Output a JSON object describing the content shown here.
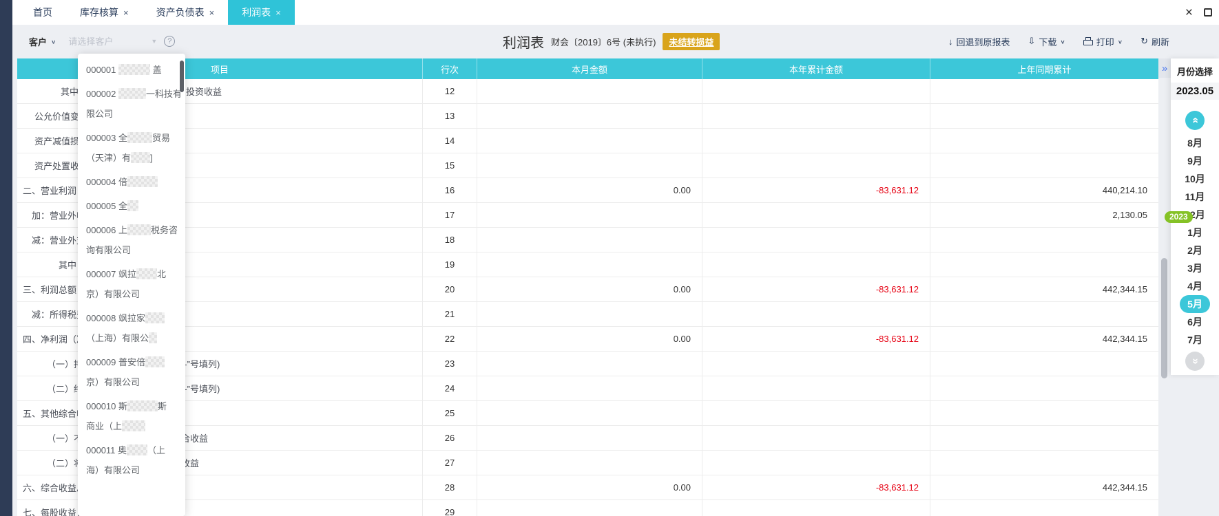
{
  "window": {
    "close_icon": "×"
  },
  "tabs": [
    {
      "label": "首页",
      "closable": false,
      "active": false
    },
    {
      "label": "库存核算",
      "closable": true,
      "active": false
    },
    {
      "label": "资产负债表",
      "closable": true,
      "active": false
    },
    {
      "label": "利润表",
      "closable": true,
      "active": true
    }
  ],
  "toolbar": {
    "filter_label": "客户",
    "filter_placeholder": "请选择客户",
    "help_icon": "?",
    "title": "利润表",
    "subtitle": "财会〔2019〕6号 (未执行)",
    "badge": "未结转损益",
    "actions": [
      {
        "name": "revert-report",
        "icon": "↓",
        "label": "回退到原报表",
        "caret": false
      },
      {
        "name": "download",
        "icon": "⇩",
        "label": "下载",
        "caret": true
      },
      {
        "name": "print",
        "icon": "printer",
        "label": "打印",
        "caret": true
      },
      {
        "name": "refresh",
        "icon": "↻",
        "label": "刷新",
        "caret": false
      }
    ]
  },
  "table": {
    "headers": [
      "项目",
      "行次",
      "本月金额",
      "本年累计金额",
      "上年同期累计"
    ],
    "rows": [
      {
        "no": "12",
        "item": "其中：对联营企业和合营企业的投资收益",
        "indent": 63,
        "cur": "",
        "ytd": "",
        "prior": ""
      },
      {
        "no": "13",
        "item": "公允价值变动收益（损失以“-”号填列）",
        "indent": 25,
        "cur": "",
        "ytd": "",
        "prior": ""
      },
      {
        "no": "14",
        "item": "资产减值损失（损失以“-”号填列）",
        "indent": 25,
        "cur": "",
        "ytd": "",
        "prior": ""
      },
      {
        "no": "15",
        "item": "资产处置收益（损失以“-”号填列）",
        "indent": 25,
        "cur": "",
        "ytd": "",
        "prior": ""
      },
      {
        "no": "16",
        "item": "二、营业利润（亏损以“-”号填列）",
        "indent": 8,
        "cur": "0.00",
        "ytd": "-83,631.12",
        "prior": "440,214.10"
      },
      {
        "no": "17",
        "item": "加：营业外收入",
        "indent": 21,
        "cur": "",
        "ytd": "",
        "prior": "2,130.05"
      },
      {
        "no": "18",
        "item": "减：营业外支出",
        "indent": 21,
        "cur": "",
        "ytd": "",
        "prior": ""
      },
      {
        "no": "19",
        "item": "其中：非流动资产处置损失",
        "indent": 60,
        "cur": "",
        "ytd": "",
        "prior": ""
      },
      {
        "no": "20",
        "item": "三、利润总额（亏损总额以“-”号填列）",
        "indent": 8,
        "cur": "0.00",
        "ytd": "-83,631.12",
        "prior": "442,344.15"
      },
      {
        "no": "21",
        "item": "减：所得税费用",
        "indent": 21,
        "cur": "",
        "ytd": "",
        "prior": ""
      },
      {
        "no": "22",
        "item": "四、净利润（净亏损以“-”号填列）",
        "indent": 8,
        "cur": "0.00",
        "ytd": "-83,631.12",
        "prior": "442,344.15"
      },
      {
        "no": "23",
        "item": "（一）持续经营净利润（净亏损以“-”号填列)",
        "indent": 43,
        "cur": "",
        "ytd": "",
        "prior": ""
      },
      {
        "no": "24",
        "item": "（二）终止经营净利润（净亏损以“-”号填列)",
        "indent": 43,
        "cur": "",
        "ytd": "",
        "prior": ""
      },
      {
        "no": "25",
        "item": "五、其他综合收益的税后净额",
        "indent": 8,
        "cur": "",
        "ytd": "",
        "prior": ""
      },
      {
        "no": "26",
        "item": "（一）不能重分类进损益的其他综合收益",
        "indent": 43,
        "cur": "",
        "ytd": "",
        "prior": ""
      },
      {
        "no": "27",
        "item": "（二）将重分类进损益的其他综合收益",
        "indent": 43,
        "cur": "",
        "ytd": "",
        "prior": ""
      },
      {
        "no": "28",
        "item": "六、综合收益总额",
        "indent": 8,
        "cur": "0.00",
        "ytd": "-83,631.12",
        "prior": "442,344.15"
      },
      {
        "no": "29",
        "item": "七、每股收益：",
        "indent": 8,
        "cur": "",
        "ytd": "",
        "prior": ""
      }
    ]
  },
  "dropdown": {
    "items": [
      [
        [
          {
            "t": "000001 "
          },
          {
            "r": 46
          },
          {
            "t": " 盖"
          }
        ]
      ],
      [
        [
          {
            "t": "000002 "
          },
          {
            "r": 40
          },
          {
            "t": "一科技有"
          }
        ],
        [
          {
            "t": "限公司"
          }
        ]
      ],
      [
        [
          {
            "t": "000003 全"
          },
          {
            "r": 36
          },
          {
            "t": "贸易"
          }
        ],
        [
          {
            "t": "（天津）有"
          },
          {
            "r": 28
          },
          {
            "t": "]"
          }
        ]
      ],
      [
        [
          {
            "t": "000004 倍"
          },
          {
            "r": 44
          }
        ]
      ],
      [
        [
          {
            "t": "000005 全"
          },
          {
            "r": 16
          }
        ]
      ],
      [
        [
          {
            "t": "000006 上"
          },
          {
            "r": 34
          },
          {
            "t": "税务咨"
          }
        ],
        [
          {
            "t": "询有限公司"
          }
        ]
      ],
      [
        [
          {
            "t": "000007 飒拉"
          },
          {
            "r": 30
          },
          {
            "t": "北"
          }
        ],
        [
          {
            "t": "京）有限公司"
          }
        ]
      ],
      [
        [
          {
            "t": "000008 飒拉家"
          },
          {
            "r": 28
          }
        ],
        [
          {
            "t": "（上海）有限公"
          },
          {
            "r": 12
          }
        ]
      ],
      [
        [
          {
            "t": "000009 普安倍"
          },
          {
            "r": 28
          }
        ],
        [
          {
            "t": "京）有限公司"
          }
        ]
      ],
      [
        [
          {
            "t": "000010 斯"
          },
          {
            "r": 44
          },
          {
            "t": "斯"
          }
        ],
        [
          {
            "t": "商业（上"
          },
          {
            "r": 34
          }
        ]
      ],
      [
        [
          {
            "t": "000011 奥"
          },
          {
            "r": 30
          },
          {
            "t": "（上"
          }
        ],
        [
          {
            "t": "海）有限公司"
          }
        ]
      ]
    ]
  },
  "month_panel": {
    "title": "月份选择",
    "current": "2023.05",
    "year_badge": "2023",
    "months": [
      "8月",
      "9月",
      "10月",
      "11月",
      "12月",
      "1月",
      "2月",
      "3月",
      "4月",
      "5月",
      "6月",
      "7月"
    ],
    "selected": "5月"
  },
  "misc": {
    "collapse_icon": "»"
  }
}
